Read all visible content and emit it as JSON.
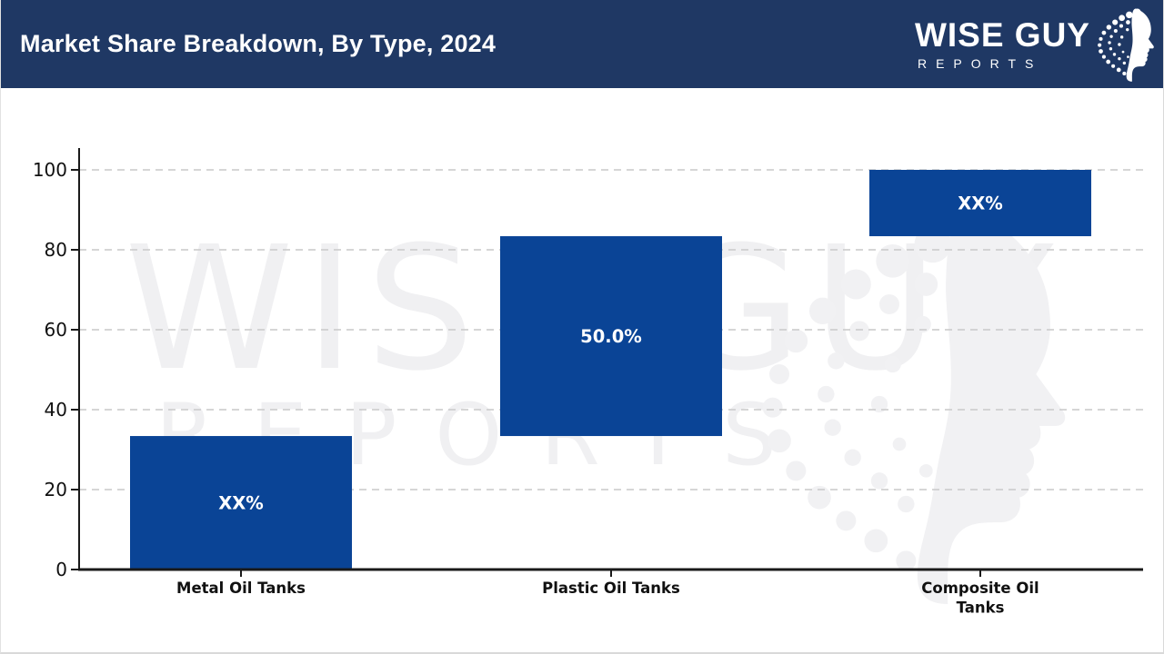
{
  "header": {
    "title": "Market Share Breakdown, By Type, 2024",
    "background_color": "#1f3864",
    "logo": {
      "line1": "WISE GUY",
      "line2": "REPORTS"
    }
  },
  "watermark": {
    "line1": "WISE GUY",
    "line2": "REPORTS"
  },
  "chart_data": {
    "type": "bar",
    "subtype": "waterfall",
    "title": "Market Share Breakdown, By Type, 2024",
    "categories": [
      "Metal Oil Tanks",
      "Plastic Oil Tanks",
      "Composite Oil Tanks"
    ],
    "bars": [
      {
        "category": "Metal Oil Tanks",
        "start": 0,
        "end": 33.4,
        "label": "XX%"
      },
      {
        "category": "Plastic Oil Tanks",
        "start": 33.4,
        "end": 83.4,
        "label": "50.0%"
      },
      {
        "category": "Composite Oil Tanks",
        "start": 83.4,
        "end": 100,
        "label": "XX%"
      }
    ],
    "category_label_lines": [
      [
        "Metal Oil Tanks"
      ],
      [
        "Plastic Oil Tanks"
      ],
      [
        "Composite Oil",
        "Tanks"
      ]
    ],
    "yticks": [
      0,
      20,
      40,
      60,
      80,
      100
    ],
    "ylim": [
      0,
      105.5
    ],
    "xlabel": "",
    "ylabel": "",
    "grid": "horizontal-dashed",
    "legend": "none",
    "bar_color": "#0a4496",
    "bar_label_color": "#ffffff",
    "grid_color": "#c9c9c9",
    "axis_color": "#1a1a1a"
  }
}
